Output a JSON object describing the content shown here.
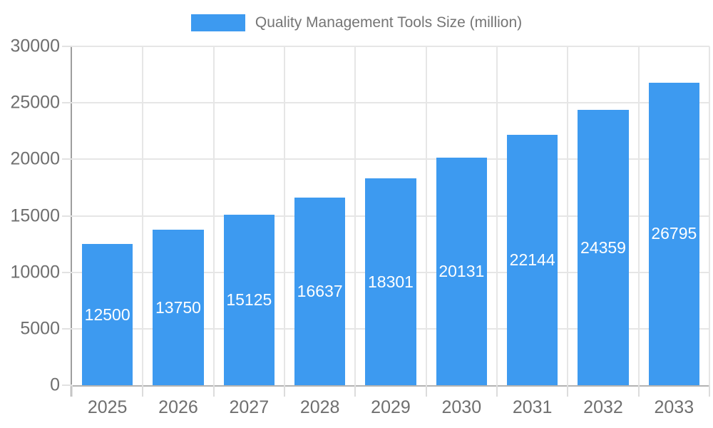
{
  "legend": {
    "label": "Quality Management Tools Size (million)"
  },
  "colors": {
    "bar": "#3d9af0",
    "grid": "#e6e6e6",
    "axis": "#9e9e9e",
    "tick_text": "#6f6f6f",
    "legend_text": "#757575",
    "value_text": "#ffffff",
    "background": "#ffffff"
  },
  "chart_data": {
    "type": "bar",
    "title": "Quality Management Tools Size (million)",
    "categories": [
      "2025",
      "2026",
      "2027",
      "2028",
      "2029",
      "2030",
      "2031",
      "2032",
      "2033"
    ],
    "series": [
      {
        "name": "Quality Management Tools Size (million)",
        "values": [
          12500,
          13750,
          15125,
          16637,
          18301,
          20131,
          22144,
          24359,
          26795
        ]
      }
    ],
    "xlabel": "",
    "ylabel": "",
    "ylim": [
      0,
      30000
    ],
    "yticks": [
      0,
      5000,
      10000,
      15000,
      20000,
      25000,
      30000
    ],
    "grid": true,
    "legend_position": "top-center",
    "value_labels": "inside-middle"
  }
}
